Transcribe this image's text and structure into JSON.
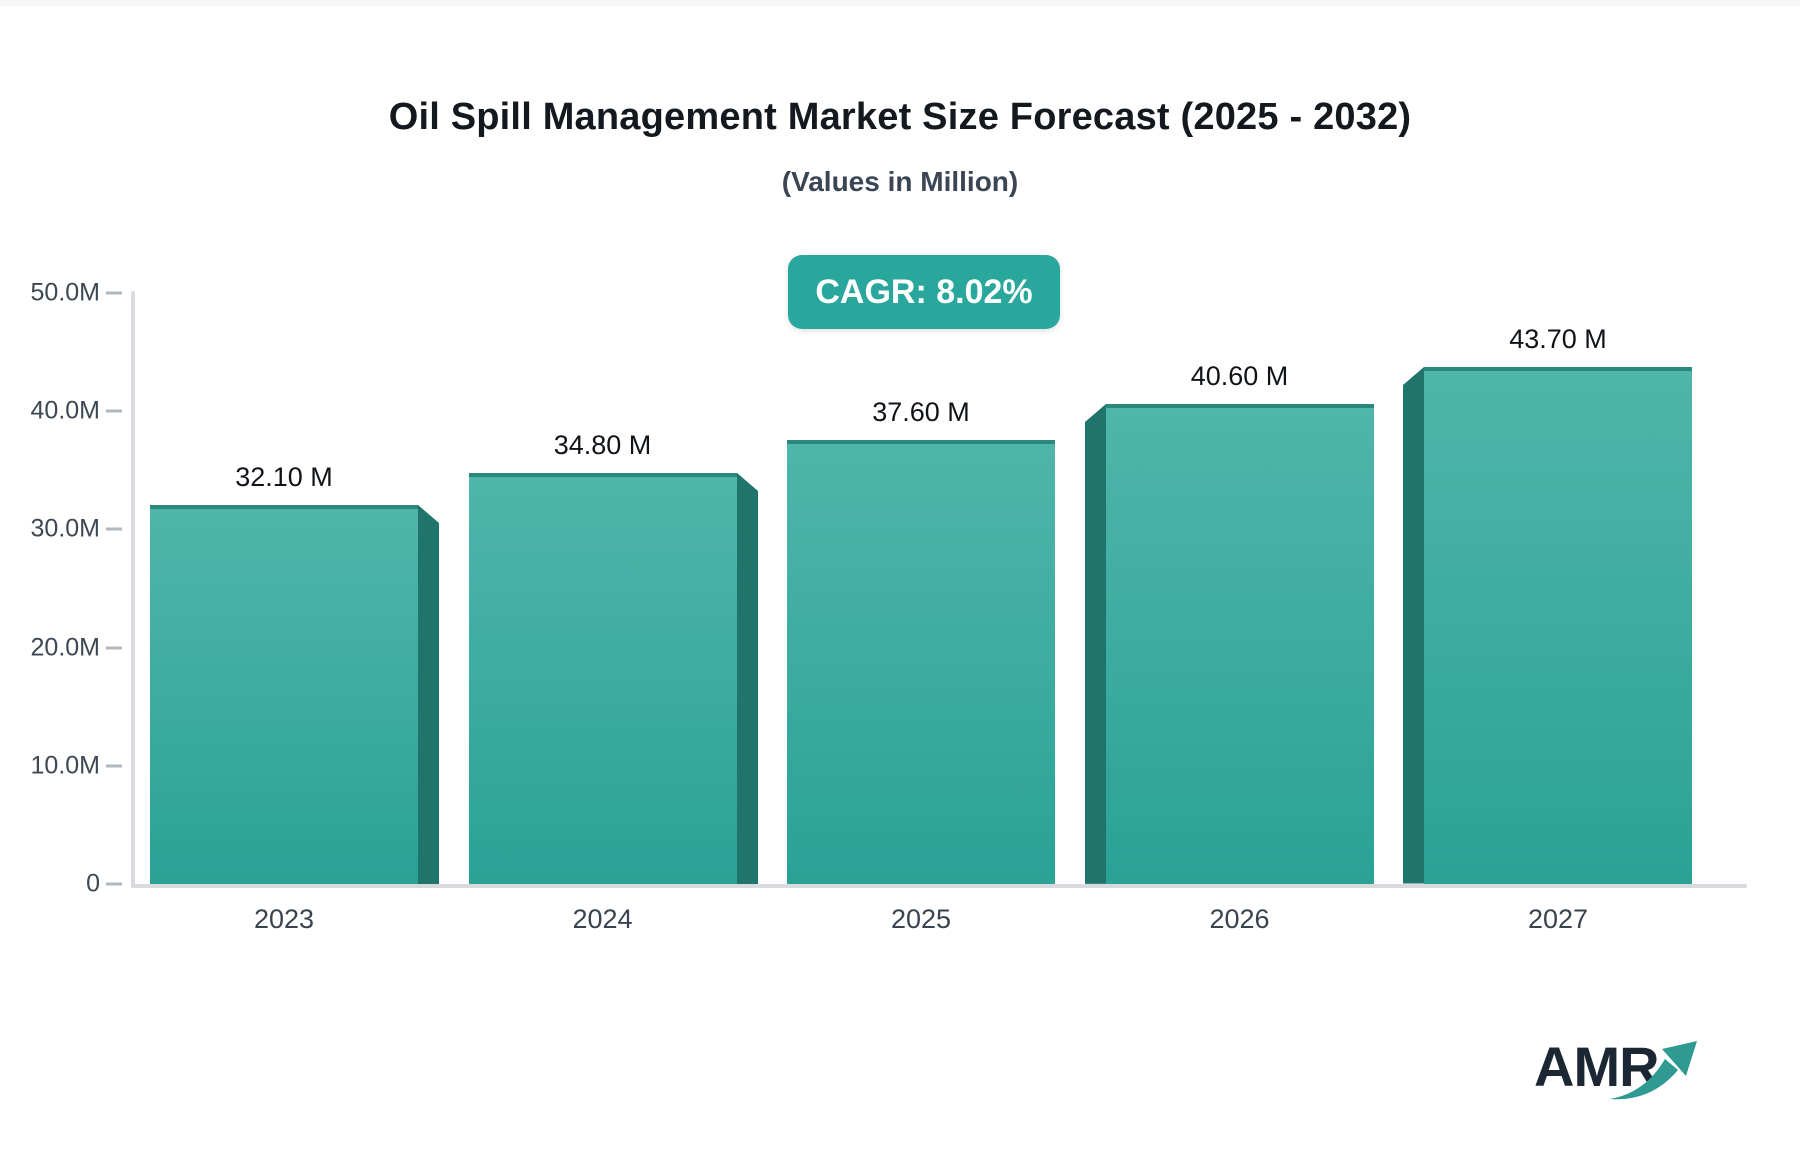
{
  "header": {
    "title": "Oil Spill Management Market Size Forecast (2025 - 2032)",
    "subtitle": "(Values in Million)"
  },
  "badge": {
    "label": "CAGR: 8.02%",
    "bg_color": "#2aa79c",
    "text_color": "#ffffff"
  },
  "chart_data": {
    "type": "bar",
    "title": "Oil Spill Management Market Size Forecast (2025 - 2032)",
    "subtitle": "(Values in Million)",
    "cagr_label": "CAGR: 8.02%",
    "categories": [
      "2023",
      "2024",
      "2025",
      "2026",
      "2027"
    ],
    "values": [
      32.1,
      34.8,
      37.6,
      40.6,
      43.7
    ],
    "value_labels": [
      "32.10 M",
      "34.80 M",
      "37.60 M",
      "40.60 M",
      "43.70 M"
    ],
    "unit": "Million",
    "xlabel": "",
    "ylabel": "",
    "ylim": [
      0,
      50
    ],
    "y_ticks": [
      {
        "label": "50.0M",
        "value": 50
      },
      {
        "label": "40.0M",
        "value": 40
      },
      {
        "label": "30.0M",
        "value": 30
      },
      {
        "label": "20.0M",
        "value": 20
      },
      {
        "label": "10.0M",
        "value": 10
      },
      {
        "label": "0",
        "value": 0
      }
    ],
    "grid": false,
    "legend": null,
    "bar_style_3d": "perspective toward center: left bars show right shade, right bars show left shade",
    "colors": {
      "face_top": "#50b5ab",
      "face_bottom": "#2aa296",
      "side_shade": "#1f746b",
      "top_edge": "#2b887d",
      "axis_line": "#d8dade",
      "tick_dash": "#b3b8bf",
      "tick_label": "#3d4854",
      "value_label": "#101418"
    }
  },
  "logo": {
    "text": "AMR",
    "text_color": "#1b2733",
    "arrow_color": "#2e9a91"
  }
}
